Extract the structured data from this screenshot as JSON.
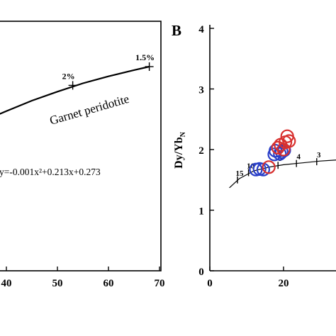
{
  "chart_data": [
    {
      "type": "line",
      "panel": "A",
      "panel_label": "",
      "xlim": [
        30,
        70
      ],
      "x_ticks": [
        40,
        50,
        60,
        70
      ],
      "x_tick_labels": [
        "40",
        "50",
        "60",
        "70"
      ],
      "series": [
        {
          "x": [
            30,
            35,
            40,
            45,
            50,
            55,
            60,
            65,
            68
          ],
          "y": [
            0,
            8,
            16,
            23.5,
            30,
            36,
            41,
            45.5,
            48
          ]
        }
      ],
      "curve_label": "Garnet peridotite",
      "equation_prefix": "y",
      "equation": "=-0.001x²+0.213x+0.273",
      "markers": [
        {
          "label": "2%",
          "x": 53,
          "y": 34.5
        },
        {
          "label": "1.5%",
          "x": 68,
          "y": 48
        }
      ]
    },
    {
      "type": "scatter",
      "panel": "B",
      "panel_label": "B",
      "ylabel_main": "Dy/Yb",
      "ylabel_sub": "N",
      "xlim": [
        0,
        50
      ],
      "ylim": [
        0,
        4
      ],
      "x_ticks": [
        0,
        20
      ],
      "x_tick_labels": [
        "0",
        "20"
      ],
      "y_ticks": [
        0,
        1,
        2,
        3,
        4
      ],
      "y_tick_labels": [
        "0",
        "1",
        "2",
        "3",
        "4"
      ],
      "curve": {
        "x": [
          5.3,
          8,
          12,
          16,
          20,
          25,
          30,
          35,
          40,
          47
        ],
        "y": [
          1.37,
          1.52,
          1.65,
          1.71,
          1.75,
          1.78,
          1.81,
          1.83,
          1.84,
          1.86
        ]
      },
      "curve_ticks": [
        {
          "label": "15",
          "x": 7.5,
          "y": 1.5
        },
        {
          "label": "10",
          "x": 10.5,
          "y": 1.62
        },
        {
          "label": "5",
          "x": 18.5,
          "y": 1.74
        },
        {
          "label": "4",
          "x": 23.5,
          "y": 1.77
        },
        {
          "label": "3",
          "x": 29,
          "y": 1.8
        }
      ],
      "series": [
        {
          "color": "#2a3fc8",
          "points": [
            {
              "x": 12.5,
              "y": 1.67
            },
            {
              "x": 13.5,
              "y": 1.68
            },
            {
              "x": 14.5,
              "y": 1.67
            },
            {
              "x": 17.5,
              "y": 1.92
            },
            {
              "x": 17.8,
              "y": 1.98
            },
            {
              "x": 19.5,
              "y": 1.96
            },
            {
              "x": 20.2,
              "y": 1.99
            },
            {
              "x": 19,
              "y": 1.93
            }
          ]
        },
        {
          "color": "#d8302e",
          "points": [
            {
              "x": 16,
              "y": 1.71
            },
            {
              "x": 18.5,
              "y": 2.03
            },
            {
              "x": 19.2,
              "y": 2.08
            },
            {
              "x": 20,
              "y": 2.0
            },
            {
              "x": 20.5,
              "y": 2.12
            },
            {
              "x": 21,
              "y": 2.22
            },
            {
              "x": 21.5,
              "y": 2.14
            }
          ]
        }
      ]
    }
  ]
}
